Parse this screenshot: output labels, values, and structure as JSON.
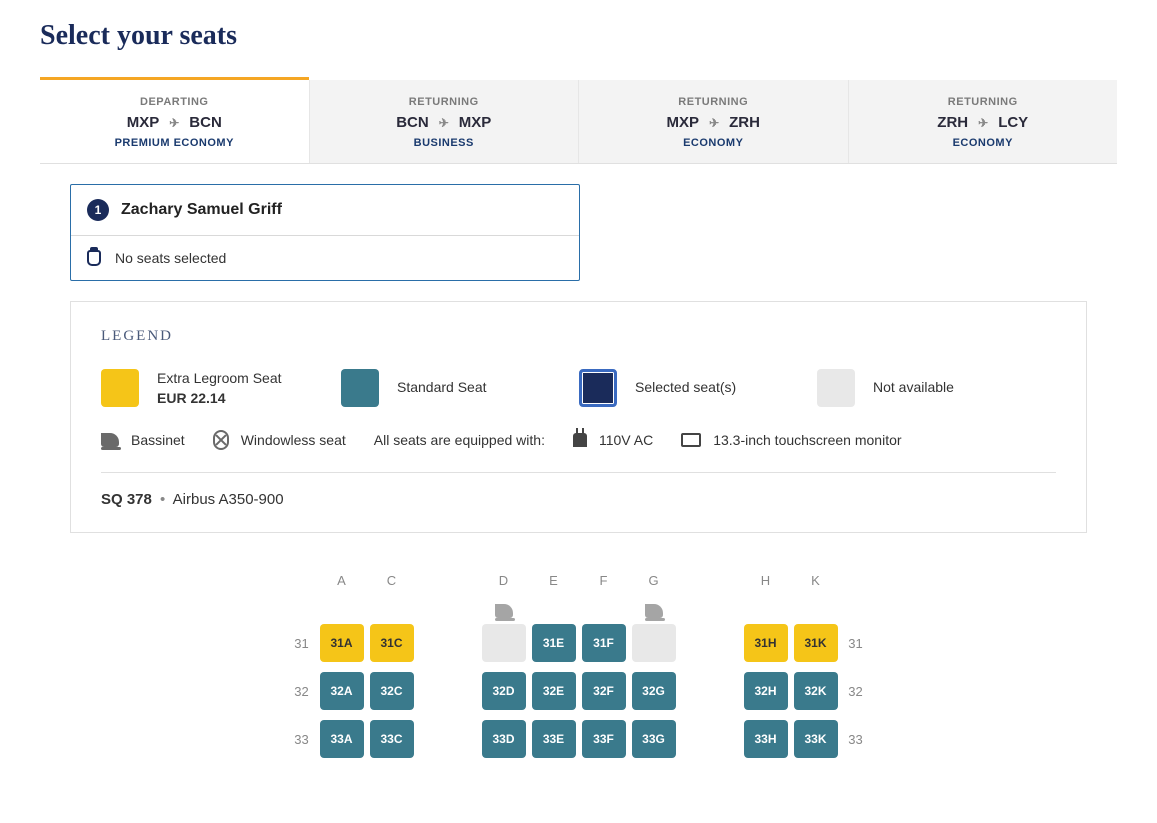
{
  "page_title": "Select your seats",
  "colors": {
    "extra_legroom": "#f5c518",
    "standard": "#3a7a8c",
    "selected": "#1a2b5a",
    "unavailable": "#e8e8e8",
    "accent_bar": "#f5a623",
    "title": "#1a2b5a"
  },
  "tabs": [
    {
      "direction": "DEPARTING",
      "from": "MXP",
      "to": "BCN",
      "cabin": "PREMIUM ECONOMY",
      "active": true
    },
    {
      "direction": "RETURNING",
      "from": "BCN",
      "to": "MXP",
      "cabin": "BUSINESS",
      "active": false
    },
    {
      "direction": "RETURNING",
      "from": "MXP",
      "to": "ZRH",
      "cabin": "ECONOMY",
      "active": false
    },
    {
      "direction": "RETURNING",
      "from": "ZRH",
      "to": "LCY",
      "cabin": "ECONOMY",
      "active": false
    }
  ],
  "passenger": {
    "number": "1",
    "name": "Zachary Samuel Griff",
    "status": "No seats selected"
  },
  "legend": {
    "title": "LEGEND",
    "items": {
      "extra": {
        "label": "Extra Legroom Seat",
        "price": "EUR 22.14"
      },
      "standard": {
        "label": "Standard Seat"
      },
      "selected": {
        "label": "Selected seat(s)"
      },
      "unavailable": {
        "label": "Not available"
      }
    },
    "bassinet": "Bassinet",
    "windowless": "Windowless seat",
    "equipped_label": "All seats are equipped with:",
    "ac": "110V AC",
    "monitor": "13.3-inch touchscreen monitor",
    "flight_number": "SQ 378",
    "aircraft": "Airbus A350-900"
  },
  "seatmap": {
    "columns": {
      "left": [
        "A",
        "C"
      ],
      "center": [
        "D",
        "E",
        "F",
        "G"
      ],
      "right": [
        "H",
        "K"
      ]
    },
    "bassinet_cols": [
      "D",
      "G"
    ],
    "rows": [
      {
        "num": "31",
        "seats": {
          "A": {
            "label": "31A",
            "type": "extra"
          },
          "C": {
            "label": "31C",
            "type": "extra"
          },
          "D": {
            "label": "",
            "type": "unavailable"
          },
          "E": {
            "label": "31E",
            "type": "standard"
          },
          "F": {
            "label": "31F",
            "type": "standard"
          },
          "G": {
            "label": "",
            "type": "unavailable"
          },
          "H": {
            "label": "31H",
            "type": "extra"
          },
          "K": {
            "label": "31K",
            "type": "extra"
          }
        }
      },
      {
        "num": "32",
        "seats": {
          "A": {
            "label": "32A",
            "type": "standard"
          },
          "C": {
            "label": "32C",
            "type": "standard"
          },
          "D": {
            "label": "32D",
            "type": "standard"
          },
          "E": {
            "label": "32E",
            "type": "standard"
          },
          "F": {
            "label": "32F",
            "type": "standard"
          },
          "G": {
            "label": "32G",
            "type": "standard"
          },
          "H": {
            "label": "32H",
            "type": "standard"
          },
          "K": {
            "label": "32K",
            "type": "standard"
          }
        }
      },
      {
        "num": "33",
        "seats": {
          "A": {
            "label": "33A",
            "type": "standard"
          },
          "C": {
            "label": "33C",
            "type": "standard"
          },
          "D": {
            "label": "33D",
            "type": "standard"
          },
          "E": {
            "label": "33E",
            "type": "standard"
          },
          "F": {
            "label": "33F",
            "type": "standard"
          },
          "G": {
            "label": "33G",
            "type": "standard"
          },
          "H": {
            "label": "33H",
            "type": "standard"
          },
          "K": {
            "label": "33K",
            "type": "standard"
          }
        }
      }
    ]
  }
}
